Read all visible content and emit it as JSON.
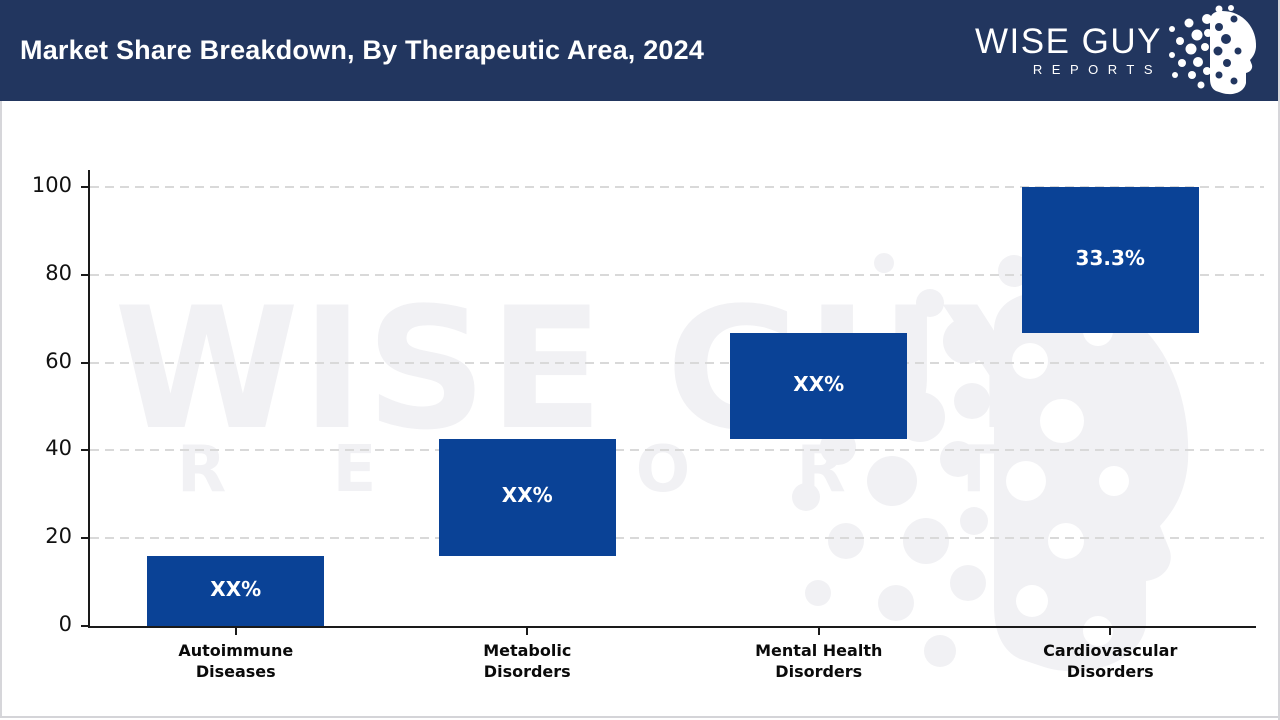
{
  "header": {
    "title": "Market Share Breakdown, By Therapeutic Area, 2024",
    "bg_color": "#22365f",
    "logo": {
      "line1": "WISE GUY",
      "line2": "REPORTS"
    }
  },
  "watermark": {
    "line1": "WISE GUY",
    "line2": "R E P O R T S"
  },
  "chart_data": {
    "type": "bar",
    "subtype": "waterfall",
    "title": "Market Share Breakdown, By Therapeutic Area, 2024",
    "xlabel": "",
    "ylabel": "",
    "ylim": [
      0,
      100
    ],
    "yticks": [
      0,
      20,
      40,
      60,
      80,
      100
    ],
    "grid": "horizontal-dashed",
    "legend": "none",
    "bar_color": "#0a4296",
    "categories": [
      "Autoimmune Diseases",
      "Metabolic Disorders",
      "Mental Health Disorders",
      "Cardiovascular Disorders"
    ],
    "bars": [
      {
        "category_lines": [
          "Autoimmune",
          "Diseases"
        ],
        "start": 0,
        "end": 16,
        "value": 16,
        "text": "XX%"
      },
      {
        "category_lines": [
          "Metabolic",
          "Disorders"
        ],
        "start": 16,
        "end": 42.7,
        "value": 26.7,
        "text": "XX%"
      },
      {
        "category_lines": [
          "Mental Health",
          "Disorders"
        ],
        "start": 42.7,
        "end": 66.7,
        "value": 24,
        "text": "XX%"
      },
      {
        "category_lines": [
          "Cardiovascular",
          "Disorders"
        ],
        "start": 66.7,
        "end": 100,
        "value": 33.3,
        "text": "33.3%"
      }
    ]
  }
}
